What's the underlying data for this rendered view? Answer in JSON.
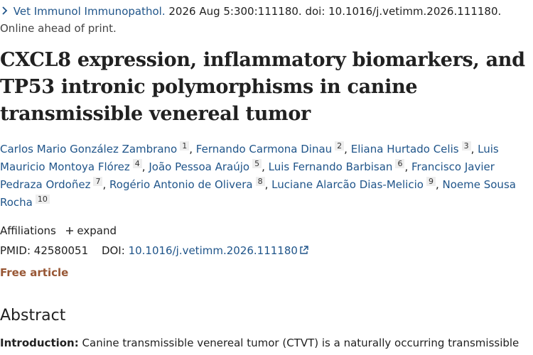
{
  "citation": {
    "journal": "Vet Immunol Immunopathol.",
    "details": "2026 Aug 5:300:111180. doi: 10.1016/j.vetimm.2026.111180.",
    "status": "Online ahead of print."
  },
  "title": "CXCL8 expression, inflammatory biomarkers, and TP53 intronic polymorphisms in canine transmissible venereal tumor",
  "authors": {
    "separator": ",",
    "list": [
      {
        "name": "Carlos Mario González Zambrano",
        "affil": "1"
      },
      {
        "name": "Fernando Carmona Dinau",
        "affil": "2"
      },
      {
        "name": "Eliana Hurtado Celis",
        "affil": "3"
      },
      {
        "name": "Luis Mauricio Montoya Flórez",
        "affil": "4"
      },
      {
        "name": "João Pessoa Araújo",
        "affil": "5"
      },
      {
        "name": "Luis Fernando Barbisan",
        "affil": "6"
      },
      {
        "name": "Francisco Javier Pedraza Ordoñez",
        "affil": "7"
      },
      {
        "name": "Rogério Antonio de Olivera",
        "affil": "8"
      },
      {
        "name": "Luciane Alarcão Dias-Melicio",
        "affil": "9"
      },
      {
        "name": "Noeme Sousa Rocha",
        "affil": "10"
      }
    ]
  },
  "affiliations": {
    "label": "Affiliations",
    "toggle": "expand"
  },
  "identifiers": {
    "pmid_label": "PMID:",
    "pmid": "42580051",
    "doi_label": "DOI:",
    "doi": "10.1016/j.vetimm.2026.111180"
  },
  "free_article": "Free article",
  "abstract": {
    "heading": "Abstract",
    "sections": [
      {
        "label": "Introduction:",
        "text": "Canine transmissible venereal tumor (CTVT) is a naturally occurring transmissible"
      }
    ]
  }
}
